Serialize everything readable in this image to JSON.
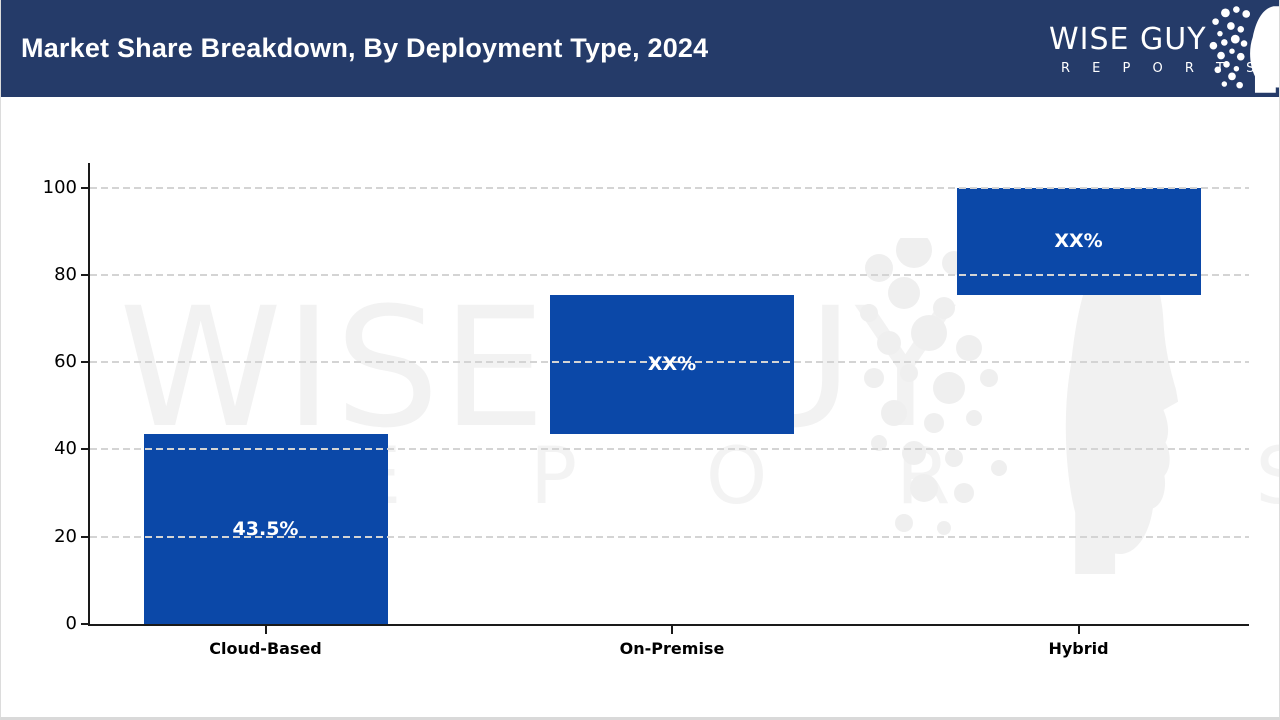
{
  "header": {
    "title": "Market Share Breakdown, By Deployment Type, 2024",
    "bg_color": "#253b69",
    "logo": {
      "wordmark": "WISE GUY",
      "subtext": "R E P O R T S",
      "face_icon": "face-profile-dots-icon"
    }
  },
  "watermark": {
    "line1": "WISE GUY",
    "line2": "R E P O R T S",
    "face_icon": "face-profile-dots-icon"
  },
  "chart_data": {
    "type": "bar",
    "variant": "stacked-waterfall-segments",
    "title": "Market Share Breakdown, By Deployment Type, 2024",
    "categories": [
      "Cloud-Based",
      "On-Premise",
      "Hybrid"
    ],
    "segments": [
      {
        "category": "Cloud-Based",
        "start": 0,
        "end": 43.5,
        "label": "43.5%"
      },
      {
        "category": "On-Premise",
        "start": 43.5,
        "end": 75.5,
        "label": "XX%"
      },
      {
        "category": "Hybrid",
        "start": 75.5,
        "end": 100,
        "label": "XX%"
      }
    ],
    "xlabel": "",
    "ylabel": "",
    "y_ticks": [
      0,
      20,
      40,
      60,
      80,
      100
    ],
    "ylim": [
      0,
      106
    ],
    "grid": true,
    "grid_style": "dashed",
    "grid_color": "#d4d4d4",
    "bar_color": "#0b48a8",
    "value_label_color": "#ffffff",
    "axis_color": "#1a1a1a",
    "legend": "none"
  }
}
